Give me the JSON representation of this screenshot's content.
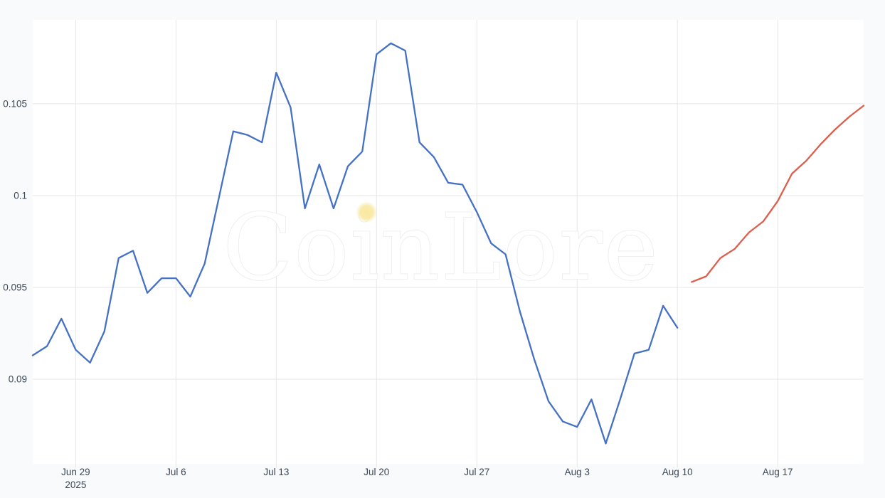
{
  "page": {
    "background_color": "#f9fafb",
    "plot_background_color": "#ffffff",
    "gridline_color": "#e7e7e7",
    "label_color": "#3a4656"
  },
  "watermark": {
    "text": "CoinLore"
  },
  "chart_data": {
    "type": "line",
    "title": "",
    "xlabel": "",
    "ylabel": "",
    "grid": true,
    "legend": false,
    "x_axis": {
      "unit": "day",
      "year_label": "2025",
      "tick_labels": [
        "Jun 29",
        "Jul 6",
        "Jul 13",
        "Jul 20",
        "Jul 27",
        "Aug 3",
        "Aug 10",
        "Aug 17"
      ],
      "tick_day_indices": [
        3,
        10,
        17,
        24,
        31,
        38,
        45,
        52
      ],
      "total_days": 58
    },
    "y_axis": {
      "tick_labels": [
        "0.105",
        "0.1",
        "0.095",
        "0.09"
      ],
      "ticks": [
        0.105,
        0.1,
        0.095,
        0.09
      ],
      "range": [
        0.08539,
        0.10957
      ]
    },
    "series": [
      {
        "name": "price-history",
        "color": "#4471c4",
        "start_day": 0,
        "dates": [
          "Jun 26",
          "Jun 27",
          "Jun 28",
          "Jun 29",
          "Jun 30",
          "Jul 1",
          "Jul 2",
          "Jul 3",
          "Jul 4",
          "Jul 5",
          "Jul 6",
          "Jul 7",
          "Jul 8",
          "Jul 9",
          "Jul 10",
          "Jul 11",
          "Jul 12",
          "Jul 13",
          "Jul 14",
          "Jul 15",
          "Jul 16",
          "Jul 17",
          "Jul 18",
          "Jul 19",
          "Jul 20",
          "Jul 21",
          "Jul 22",
          "Jul 23",
          "Jul 24",
          "Jul 25",
          "Jul 26",
          "Jul 27",
          "Jul 28",
          "Jul 29",
          "Jul 30",
          "Jul 31",
          "Aug 1",
          "Aug 2",
          "Aug 3",
          "Aug 4",
          "Aug 5",
          "Aug 6",
          "Aug 7",
          "Aug 8",
          "Aug 9",
          "Aug 10"
        ],
        "values": [
          0.0913,
          0.0918,
          0.0933,
          0.0916,
          0.0909,
          0.0926,
          0.0966,
          0.097,
          0.0947,
          0.0955,
          0.0955,
          0.0945,
          0.0963,
          0.0999,
          0.1035,
          0.1033,
          0.1029,
          0.1067,
          0.1048,
          0.0993,
          0.1017,
          0.0993,
          0.1016,
          0.1024,
          0.1077,
          0.1083,
          0.1079,
          0.1029,
          0.1021,
          0.1007,
          0.1006,
          0.0991,
          0.0974,
          0.0968,
          0.0937,
          0.0911,
          0.0888,
          0.0877,
          0.0874,
          0.0889,
          0.0865,
          0.0889,
          0.0914,
          0.0916,
          0.094,
          0.0928
        ]
      },
      {
        "name": "price-forecast",
        "color": "#dc5f4b",
        "start_day": 46,
        "dates": [
          "Aug 11",
          "Aug 12",
          "Aug 13",
          "Aug 14",
          "Aug 15",
          "Aug 16",
          "Aug 17",
          "Aug 18",
          "Aug 19",
          "Aug 20",
          "Aug 21",
          "Aug 22",
          "Aug 23"
        ],
        "values": [
          0.0953,
          0.0956,
          0.0966,
          0.0971,
          0.098,
          0.0986,
          0.0997,
          0.1012,
          0.1019,
          0.1028,
          0.1036,
          0.1043,
          0.1049
        ]
      }
    ],
    "highlight_dot": {
      "day_index": 23.3,
      "value": 0.0991,
      "color": "#f8e79b"
    }
  }
}
